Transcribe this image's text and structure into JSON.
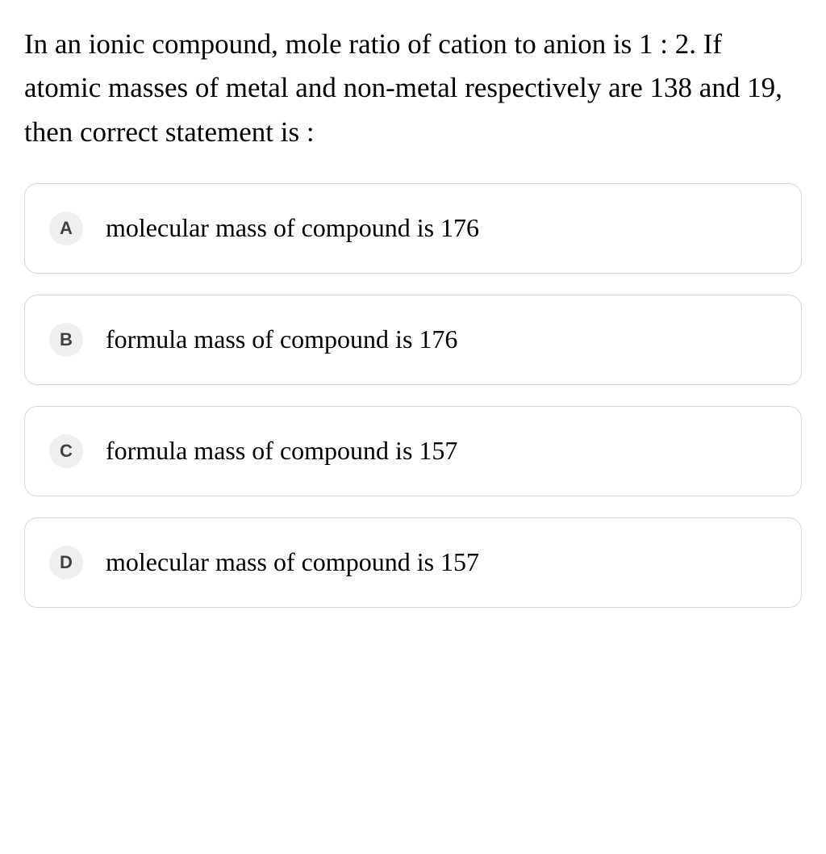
{
  "question": {
    "text": "In an ionic compound, mole ratio of cation to anion is 1 : 2. If atomic masses of metal and non-metal respectively are 138 and 19, then correct statement is :",
    "fontsize": 35,
    "line_height": 1.55,
    "text_color": "#000000"
  },
  "options": [
    {
      "letter": "A",
      "text": "molecular mass of compound is 176"
    },
    {
      "letter": "B",
      "text": "formula mass of compound is 176"
    },
    {
      "letter": "C",
      "text": "formula mass of compound is 157"
    },
    {
      "letter": "D",
      "text": "molecular mass of compound is 157"
    }
  ],
  "styling": {
    "background_color": "#ffffff",
    "card_border_color": "#d8d8d8",
    "card_border_radius": 16,
    "card_padding": "34px 30px",
    "card_margin_bottom": 26,
    "letter_badge": {
      "background_color": "#efefef",
      "text_color": "#414141",
      "size": 42,
      "fontsize": 22,
      "font_weight": 700
    },
    "option_fontsize": 32,
    "option_text_color": "#000000",
    "question_font": "Georgia, serif",
    "option_font": "Georgia, serif"
  }
}
